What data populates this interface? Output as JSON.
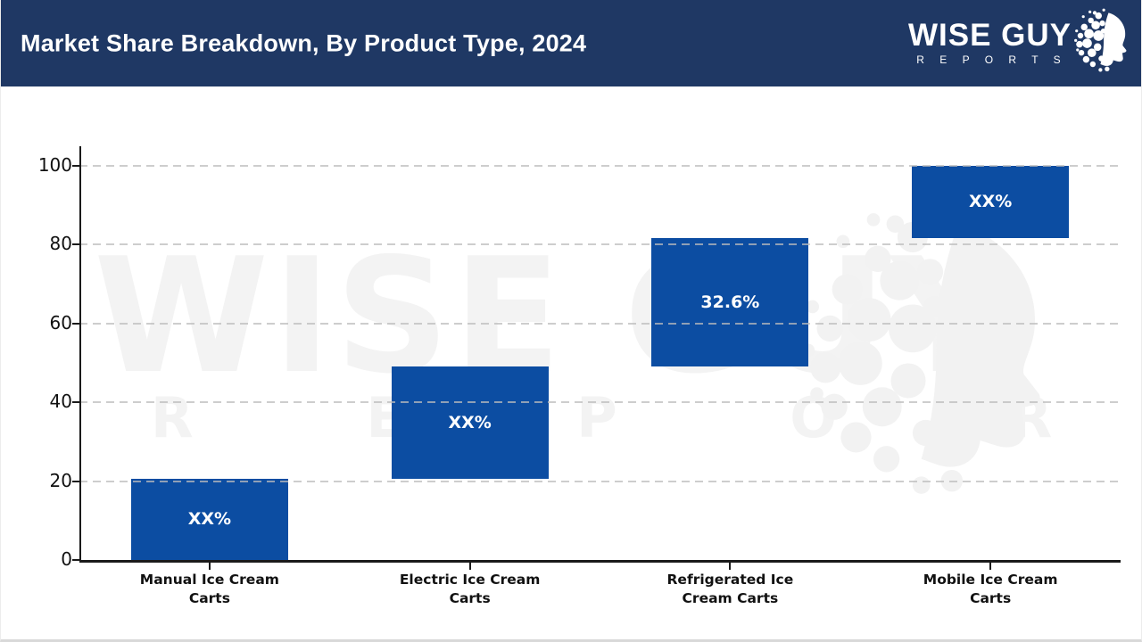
{
  "header": {
    "title": "Market Share Breakdown, By Product Type, 2024",
    "bg_color": "#1f3864",
    "logo": {
      "line1": "WISE GUY",
      "line2": "R E P O R T S"
    }
  },
  "watermark": {
    "line1": "WISE GUY",
    "line2": "R E P O R T S"
  },
  "chart_data": {
    "type": "bar",
    "subtype": "waterfall-floating-segments",
    "title": "Market Share Breakdown, By Product Type, 2024",
    "categories": [
      "Manual Ice Cream Carts",
      "Electric Ice Cream Carts",
      "Refrigerated Ice Cream Carts",
      "Mobile Ice Cream Carts"
    ],
    "category_label_lines": [
      [
        "Manual Ice Cream",
        "Carts"
      ],
      [
        "Electric Ice Cream",
        "Carts"
      ],
      [
        "Refrigerated Ice",
        "Cream Carts"
      ],
      [
        "Mobile Ice Cream",
        "Carts"
      ]
    ],
    "segments": [
      {
        "category": "Manual Ice Cream Carts",
        "start": 0,
        "end": 20.6,
        "label": "XX%"
      },
      {
        "category": "Electric Ice Cream Carts",
        "start": 20.6,
        "end": 49.1,
        "label": "XX%"
      },
      {
        "category": "Refrigerated Ice Cream Carts",
        "start": 49.1,
        "end": 81.7,
        "label": "32.6%"
      },
      {
        "category": "Mobile Ice Cream Carts",
        "start": 81.7,
        "end": 100,
        "label": "XX%"
      }
    ],
    "y_ticks": [
      0,
      20,
      40,
      60,
      80,
      100
    ],
    "ylim": [
      0,
      100
    ],
    "xlabel": "",
    "ylabel": "",
    "legend": null,
    "grid": {
      "horizontal": true,
      "style": "dashed",
      "color": "#d9d9d9"
    },
    "bar_color": "#0c4da2",
    "bar_label_color": "#ffffff",
    "axis_color": "#1a1a1a"
  }
}
